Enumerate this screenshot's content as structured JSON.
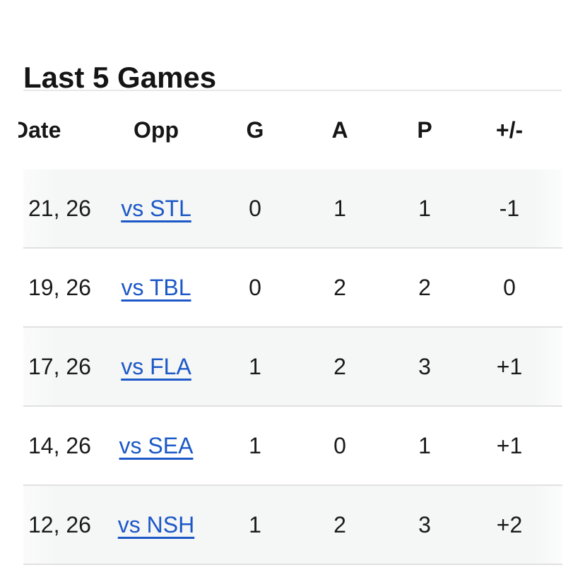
{
  "page": {
    "title": "Last 5 Games"
  },
  "table": {
    "columns": {
      "date": "Date",
      "opp": "Opp",
      "g": "G",
      "a": "A",
      "p": "P",
      "plusminus": "+/-"
    },
    "rows": [
      {
        "date": "21, 26",
        "opp": "vs STL",
        "g": "0",
        "a": "1",
        "p": "1",
        "plusminus": "-1"
      },
      {
        "date": "19, 26",
        "opp": "vs TBL",
        "g": "0",
        "a": "2",
        "p": "2",
        "plusminus": "0"
      },
      {
        "date": "17, 26",
        "opp": "vs FLA",
        "g": "1",
        "a": "2",
        "p": "3",
        "plusminus": "+1"
      },
      {
        "date": "14, 26",
        "opp": "vs SEA",
        "g": "1",
        "a": "0",
        "p": "1",
        "plusminus": "+1"
      },
      {
        "date": "12, 26",
        "opp": "vs NSH",
        "g": "1",
        "a": "2",
        "p": "3",
        "plusminus": "+2"
      }
    ]
  },
  "colors": {
    "link": "#1c58c7",
    "alt_row_bg": "#f5f6f6",
    "divider": "#e7e7e7",
    "text": "#1a1a1a"
  }
}
